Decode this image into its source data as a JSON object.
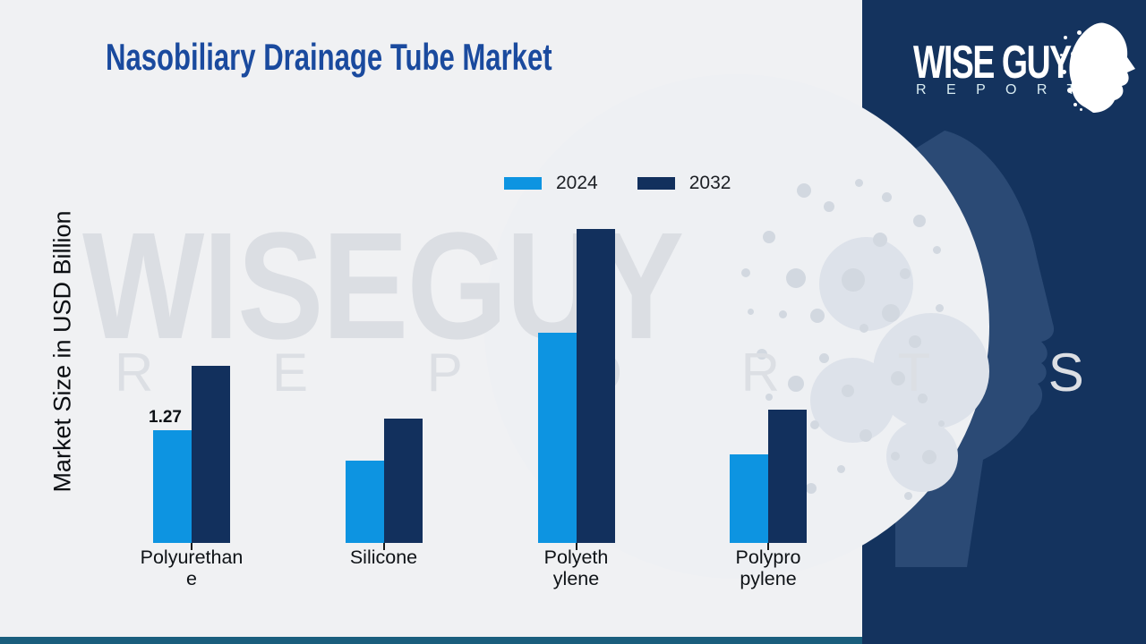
{
  "page": {
    "title": "Nasobiliary Drainage Tube Market"
  },
  "logo": {
    "name_text": "WISE GUY",
    "reports_text": "R E P O R T S"
  },
  "watermark": {
    "name_text": "WISEGUY",
    "reports_text": "R E P O R T S"
  },
  "colors": {
    "series_2024": "#0d94e1",
    "series_2032": "#12305d",
    "navy_panel": "#14335e",
    "teal_strip": "#1a5e7d",
    "title_blue": "#1a4a9e",
    "face_silhouette": "#2b4a75",
    "watermark_gray": "#dbdee3"
  },
  "chart_data": {
    "type": "bar",
    "title": "Nasobiliary Drainage Tube Market",
    "xlabel": "",
    "ylabel": "Market Size in USD Billion",
    "categories": [
      "Polyurethane",
      "Silicone",
      "Polyethylene",
      "Polypropylene"
    ],
    "category_label_lines": [
      "Polyurethan\ne",
      "Silicone",
      "Polyeth\nylene",
      "Polypro\npylene"
    ],
    "series": [
      {
        "name": "2024",
        "color": "#0d94e1",
        "values": [
          1.27,
          0.93,
          2.37,
          1.0
        ]
      },
      {
        "name": "2032",
        "color": "#12305d",
        "values": [
          2.0,
          1.4,
          3.55,
          1.5
        ]
      }
    ],
    "value_labels": [
      {
        "series": "2024",
        "category": "Polyurethane",
        "text": "1.27"
      }
    ],
    "ylim": [
      0,
      4.1
    ],
    "grid": false,
    "legend_position": "top-right",
    "y_axis_ticks_visible": false
  }
}
